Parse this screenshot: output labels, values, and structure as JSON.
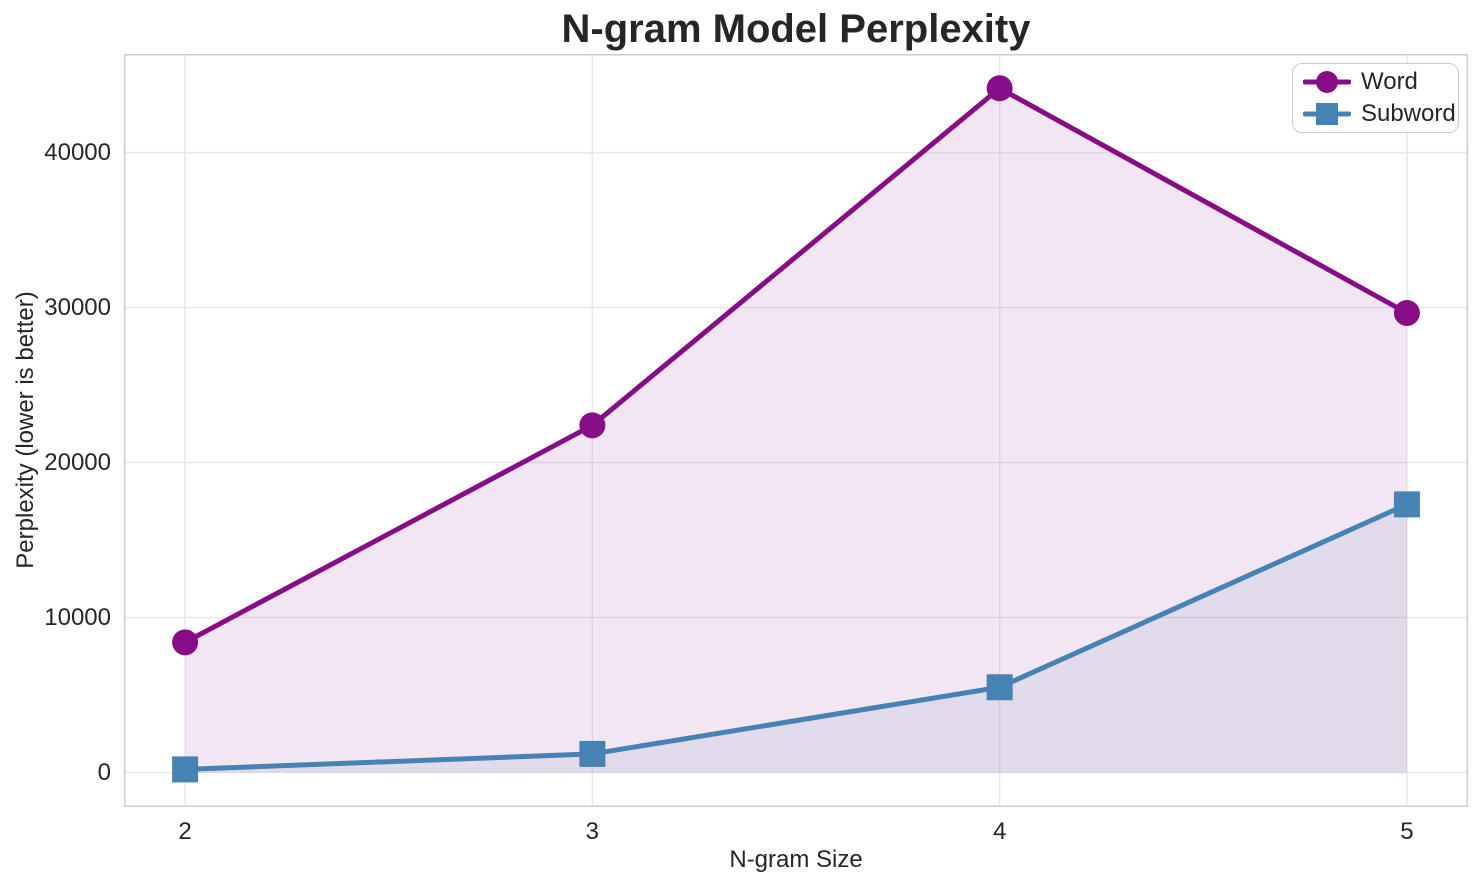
{
  "chart_data": {
    "type": "line",
    "title": "N-gram Model Perplexity",
    "xlabel": "N-gram Size",
    "ylabel": "Perplexity (lower is better)",
    "x": [
      2,
      3,
      4,
      5
    ],
    "series": [
      {
        "name": "Word",
        "values": [
          8400,
          22400,
          44150,
          29650
        ],
        "color": "#870D87",
        "marker": "circle",
        "fill_to_zero": true
      },
      {
        "name": "Subword",
        "values": [
          200,
          1200,
          5500,
          17300
        ],
        "color": "#4682B4",
        "marker": "square",
        "fill_to_zero": true
      }
    ],
    "x_tick_labels": [
      "2",
      "3",
      "4",
      "5"
    ],
    "y_ticks": [
      0,
      10000,
      20000,
      30000,
      40000
    ],
    "y_tick_labels": [
      "0",
      "10000",
      "20000",
      "30000",
      "40000"
    ],
    "xlim": [
      1.85,
      5.15
    ],
    "ylim": [
      -2225,
      46360
    ],
    "grid": true,
    "legend_position": "top-right",
    "line_width": 5,
    "marker_size": 26,
    "fill_opacity": 0.1,
    "grid_color": "#e8e8e8",
    "spine_color": "#cccccc",
    "text_color": "#262626",
    "background_color": "#ffffff"
  }
}
